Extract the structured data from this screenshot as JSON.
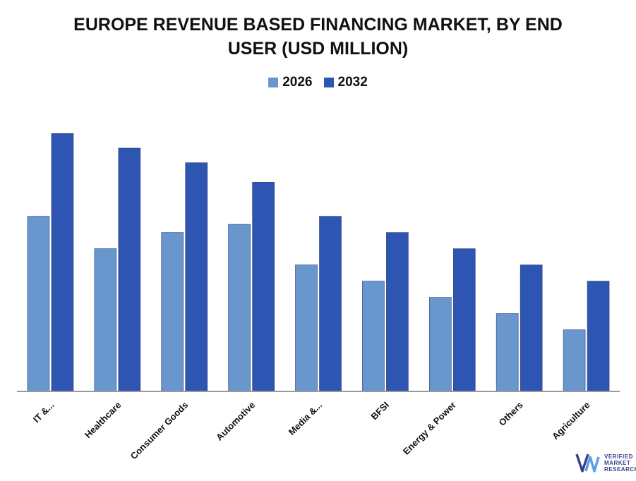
{
  "chart_data": {
    "type": "bar",
    "title_lines": [
      "EUROPE REVENUE BASED FINANCING MARKET, BY END",
      "USER (USD MILLION)"
    ],
    "categories": [
      "IT &...",
      "Healthcare",
      "Consumer Goods",
      "Automotive",
      "Media &...",
      "BFSI",
      "Energy & Power",
      "Others",
      "Agriculture"
    ],
    "series": [
      {
        "name": "2026",
        "color": "#6a96ce",
        "values": [
          54,
          44,
          49,
          51.5,
          39,
          34,
          29,
          24,
          19
        ]
      },
      {
        "name": "2032",
        "color": "#2e55b1",
        "values": [
          79.5,
          75,
          70.5,
          64.5,
          54,
          49,
          44,
          39,
          34
        ]
      }
    ],
    "ylim": [
      0,
      100
    ],
    "grid": false,
    "legend_position": "top-center"
  },
  "logo": {
    "lines": [
      "VERIFIED",
      "MARKET",
      "RESEARCH"
    ]
  }
}
